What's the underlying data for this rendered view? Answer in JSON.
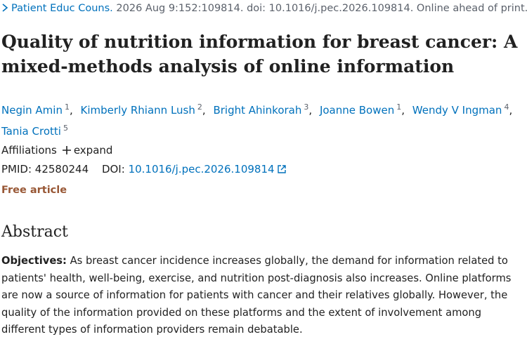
{
  "citation": {
    "journal": "Patient Educ Couns.",
    "details": "2026 Aug 9:152:109814. doi: 10.1016/j.pec.2026.109814. Online ahead of print."
  },
  "title": "Quality of nutrition information for breast cancer: A mixed-methods analysis of online information",
  "authors": [
    {
      "name": "Negin Amin",
      "aff": "1"
    },
    {
      "name": "Kimberly Rhiann Lush",
      "aff": "2"
    },
    {
      "name": "Bright Ahinkorah",
      "aff": "3"
    },
    {
      "name": "Joanne Bowen",
      "aff": "1"
    },
    {
      "name": "Wendy V Ingman",
      "aff": "4"
    },
    {
      "name": "Tania Crotti",
      "aff": "5"
    }
  ],
  "affiliations": {
    "label": "Affiliations",
    "expand": "expand"
  },
  "identifiers": {
    "pmid_label": "PMID:",
    "pmid": "42580244",
    "doi_label": "DOI:",
    "doi": "10.1016/j.pec.2026.109814"
  },
  "free_article": "Free article",
  "abstract": {
    "heading": "Abstract",
    "objectives_label": "Objectives:",
    "objectives_text": "As breast cancer incidence increases globally, the demand for information related to patients' health, well-being, exercise, and nutrition post-diagnosis also increases. Online platforms are now a source of information for patients with cancer and their relatives globally. However, the quality of the information provided on these platforms and the extent of involvement among different types of information providers remain debatable."
  }
}
